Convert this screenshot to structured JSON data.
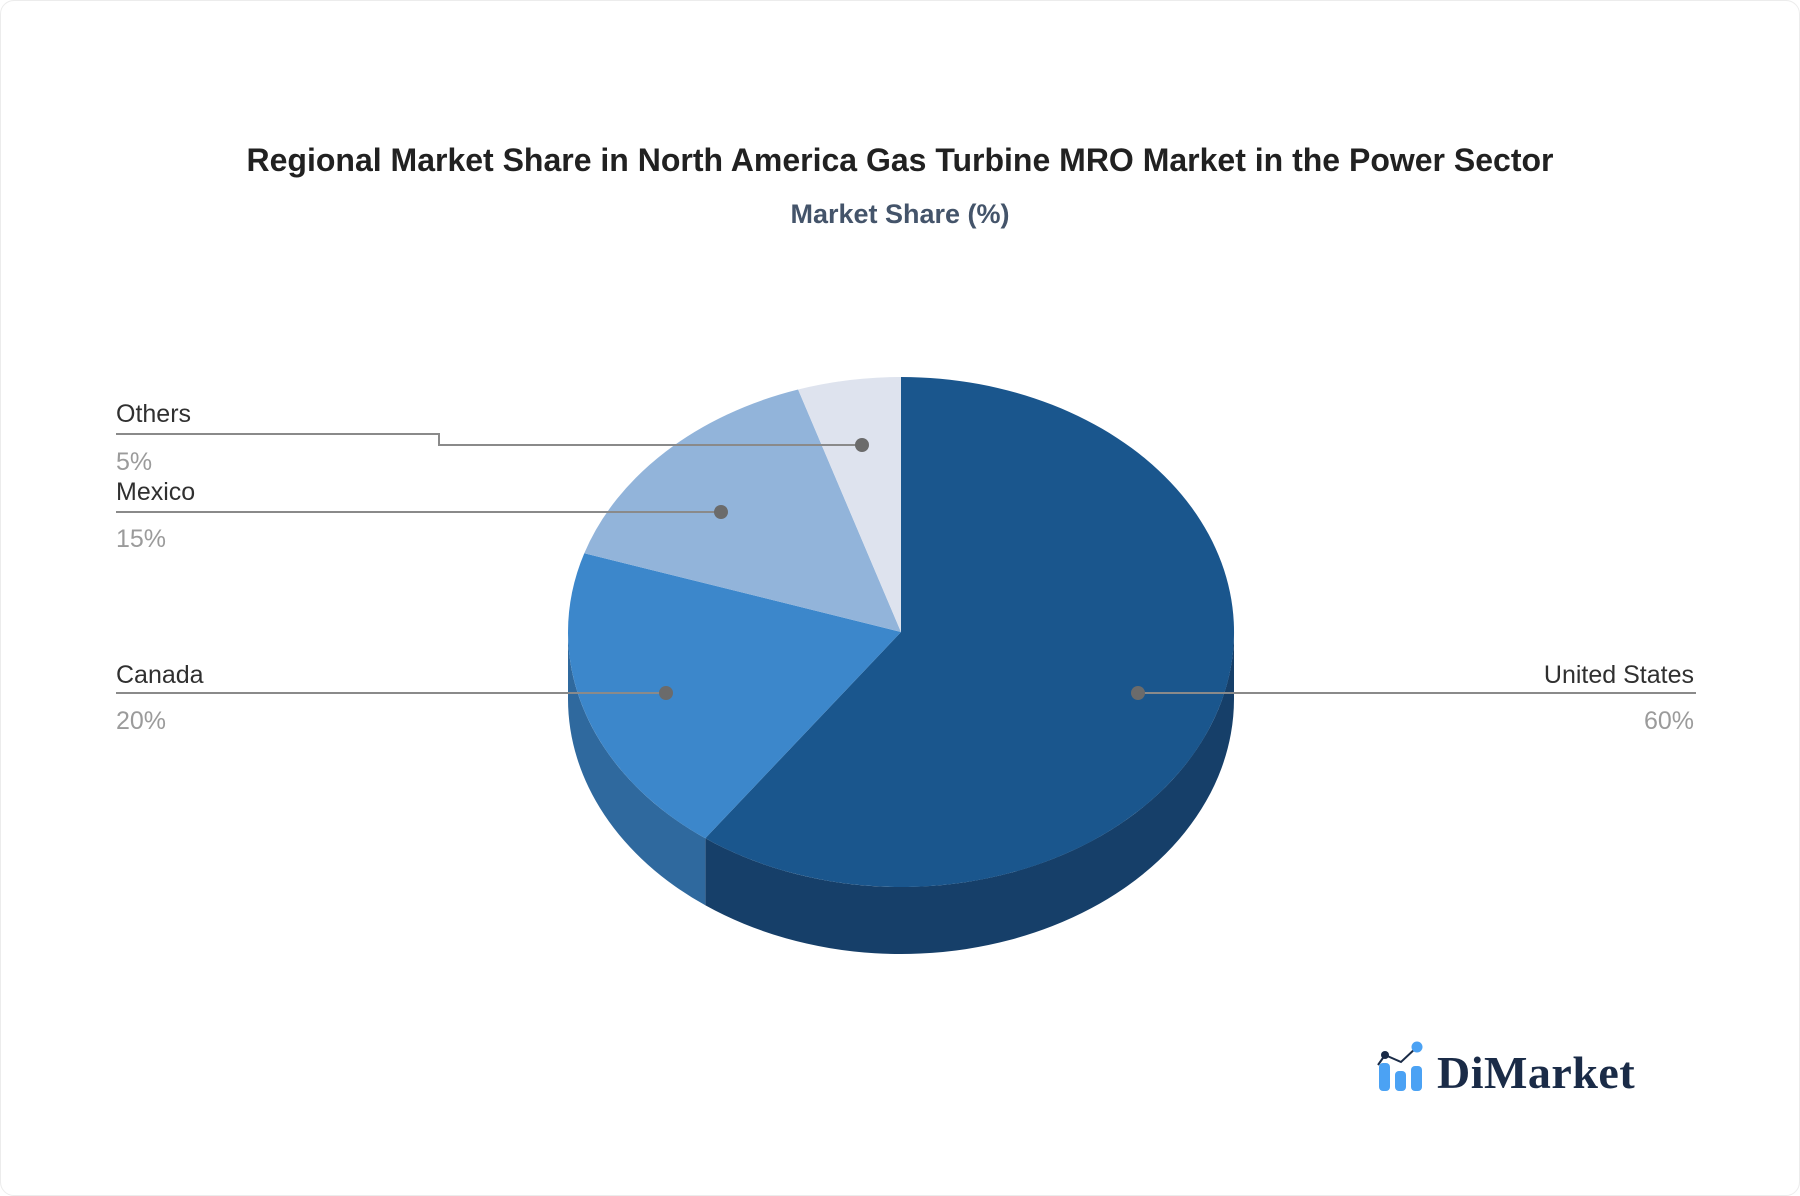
{
  "header": {
    "title": "Regional Market Share in North America Gas Turbine MRO Market in the Power Sector",
    "subtitle": "Market Share (%)"
  },
  "brand": {
    "name": "DiMarket"
  },
  "colors": {
    "background": "#FFFFFF",
    "title": "#212121",
    "subtitle": "#44546A",
    "label_name": "#303030",
    "label_value": "#9B9B9B",
    "connector_line": "#8A8A8A",
    "connector_dot": "#6B6B6B",
    "logo_navy": "#1A2B47",
    "logo_blue": "#4BA2F4"
  },
  "chart_data": {
    "type": "pie",
    "title": "Regional Market Share in North America Gas Turbine MRO Market in the Power Sector",
    "subtitle": "Market Share (%)",
    "unit": "%",
    "direction": "clockwise",
    "start_angle_deg": 0,
    "three_d": true,
    "legend": "none",
    "slices": [
      {
        "label": "United States",
        "value": 60,
        "value_text": "60%",
        "color": "#1A568D",
        "side_color": "#163F69"
      },
      {
        "label": "Canada",
        "value": 20,
        "value_text": "20%",
        "color": "#3C87CB",
        "side_color": "#2F699E"
      },
      {
        "label": "Mexico",
        "value": 15,
        "value_text": "15%",
        "color": "#92B4DA"
      },
      {
        "label": "Others",
        "value": 5,
        "value_text": "5%",
        "color": "#DEE3EE"
      }
    ]
  }
}
